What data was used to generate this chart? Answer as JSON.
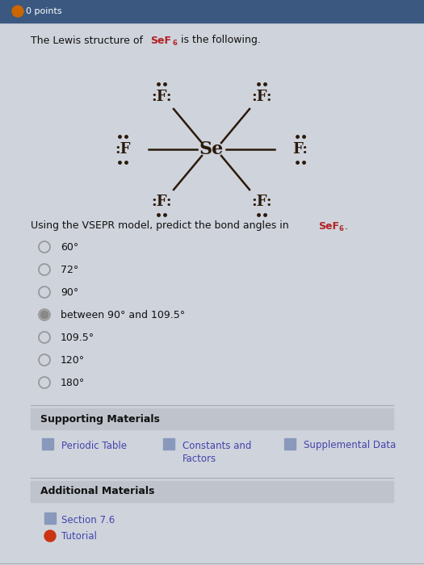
{
  "bg_color": "#cfd3dc",
  "header_color": "#3a5880",
  "header_text": "0 points",
  "title_normal": "The Lewis structure of ",
  "title_red": "SeF",
  "title_sub": "6",
  "title_end": " is the following.",
  "red_color": "#b22222",
  "bond_color": "#2a1a0a",
  "se_color": "#2a1a0a",
  "dot_color": "#2a1a0a",
  "question_normal": "Using the VSEPR model, predict the bond angles in ",
  "question_red": "SeF",
  "question_sub": "6",
  "question_end": ".",
  "options": [
    "60°",
    "72°",
    "90°",
    "between 90° and 109.5°",
    "109.5°",
    "120°",
    "180°"
  ],
  "selected_option": 3,
  "supporting_title": "Supporting Materials",
  "support_items": [
    "Periodic Table",
    "Constants and\nFactors",
    "Supplemental Data"
  ],
  "additional_title": "Additional Materials",
  "add_items": [
    "Section 7.6",
    "Tutorial"
  ],
  "link_color": "#4444aa",
  "section_bg": "#bfc3cc",
  "radio_color": "#999999"
}
